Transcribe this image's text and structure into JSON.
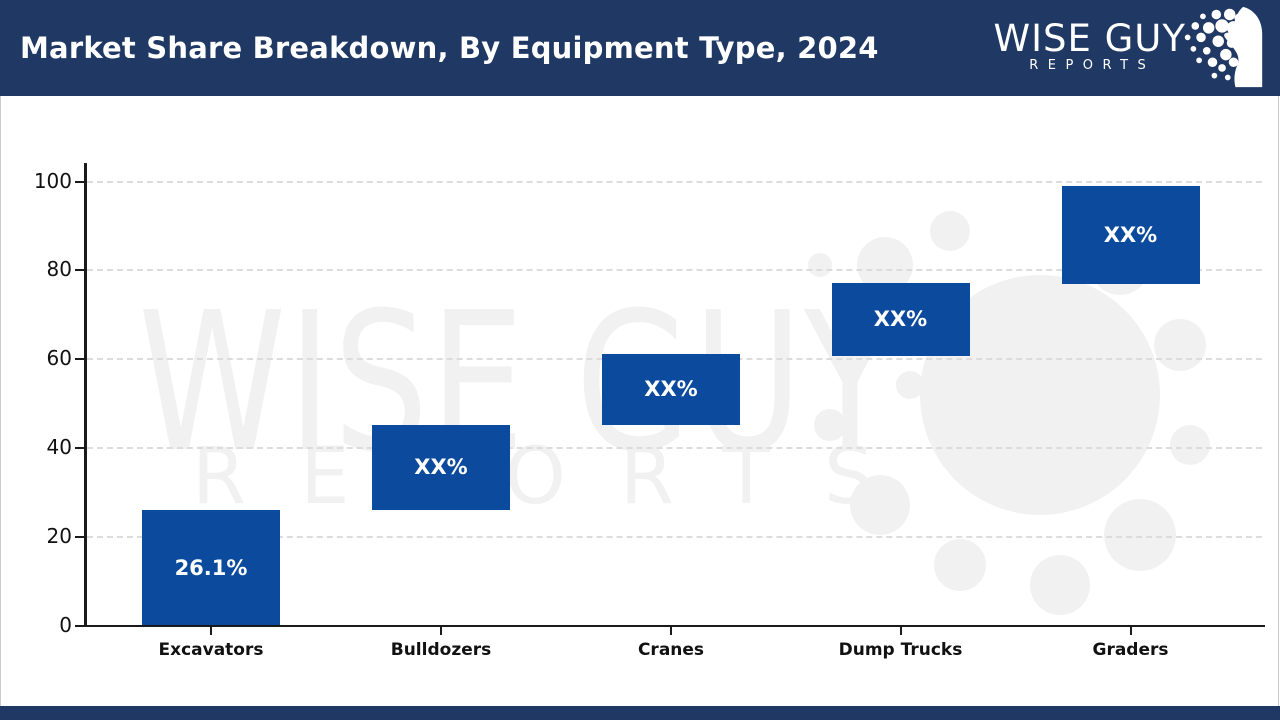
{
  "header": {
    "title": "Market Share Breakdown, By Equipment Type, 2024",
    "bg_color": "#1f3864",
    "text_color": "#ffffff",
    "logo": {
      "wordmark": "WISE GUY",
      "subtitle": "REPORTS"
    }
  },
  "watermark": {
    "wordmark": "WISE GUY",
    "subtitle": "REPORTS",
    "color": "#f1f1f1"
  },
  "chart_data": {
    "type": "bar",
    "variant": "floating-waterfall",
    "title": "Market Share Breakdown, By Equipment Type, 2024",
    "categories": [
      "Excavators",
      "Bulldozers",
      "Cranes",
      "Dump Trucks",
      "Graders"
    ],
    "segments": [
      {
        "category": "Excavators",
        "start": 0,
        "end": 26.1,
        "label": "26.1%"
      },
      {
        "category": "Bulldozers",
        "start": 26.1,
        "end": 45.3,
        "label": "XX%"
      },
      {
        "category": "Cranes",
        "start": 45.3,
        "end": 61.2,
        "label": "XX%"
      },
      {
        "category": "Dump Trucks",
        "start": 60.8,
        "end": 77.2,
        "label": "XX%"
      },
      {
        "category": "Graders",
        "start": 77,
        "end": 99,
        "label": "XX%"
      }
    ],
    "yticks": [
      0,
      20,
      40,
      60,
      80,
      100
    ],
    "ylim": [
      0,
      104
    ],
    "xlabel": "",
    "ylabel": "",
    "grid": "horizontal-dashed",
    "legend": "none",
    "bar_color": "#0b4a9c",
    "bar_label_color": "#ffffff",
    "axis_color": "#1a1a1a",
    "gridline_color": "#dcdcdc"
  },
  "footer": {
    "bg_color": "#1f3864"
  }
}
